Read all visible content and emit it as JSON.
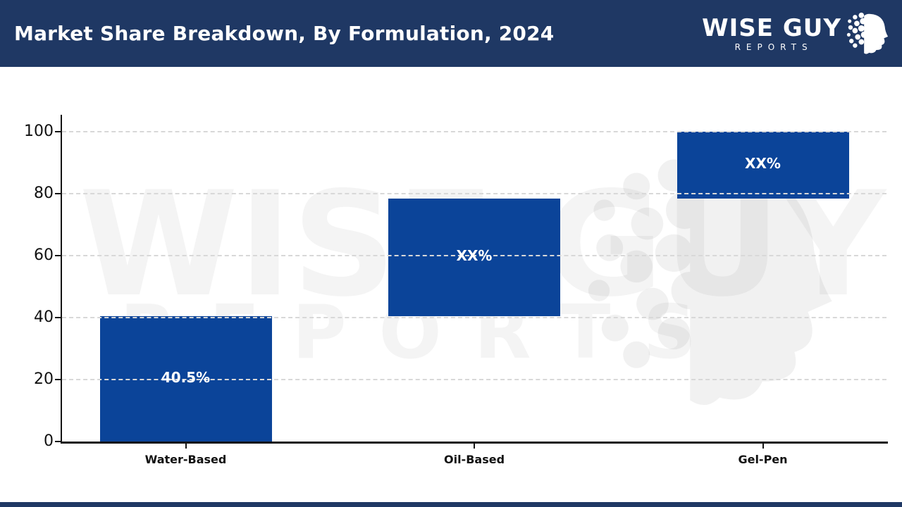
{
  "header": {
    "title": "Market Share Breakdown, By Formulation, 2024",
    "logo_line1": "WISE GUY",
    "logo_line2": "REPORTS"
  },
  "watermark": {
    "line1": "WISE GUY",
    "line2": "REPORTS"
  },
  "chart_data": {
    "type": "bar",
    "variant": "floating-segment-waterfall",
    "title": "Market Share Breakdown, By Formulation, 2024",
    "categories": [
      "Water-Based",
      "Oil-Based",
      "Gel-Pen"
    ],
    "bars": [
      {
        "category": "Water-Based",
        "start": 0,
        "end": 40.5,
        "label": "40.5%"
      },
      {
        "category": "Oil-Based",
        "start": 40.5,
        "end": 78.5,
        "label": "XX%"
      },
      {
        "category": "Gel-Pen",
        "start": 78.5,
        "end": 100,
        "label": "XX%"
      }
    ],
    "yticks": [
      0,
      20,
      40,
      60,
      80,
      100
    ],
    "ylim": [
      0,
      105
    ],
    "xlabel": "",
    "ylabel": "",
    "grid": "dashed-horizontal",
    "legend": "none",
    "bar_color": "#0b4499",
    "label_color": "#ffffff"
  },
  "colors": {
    "header_bg": "#1f3864",
    "footer_bg": "#1f3864",
    "axis": "#141414",
    "grid": "#d8d8d8"
  }
}
